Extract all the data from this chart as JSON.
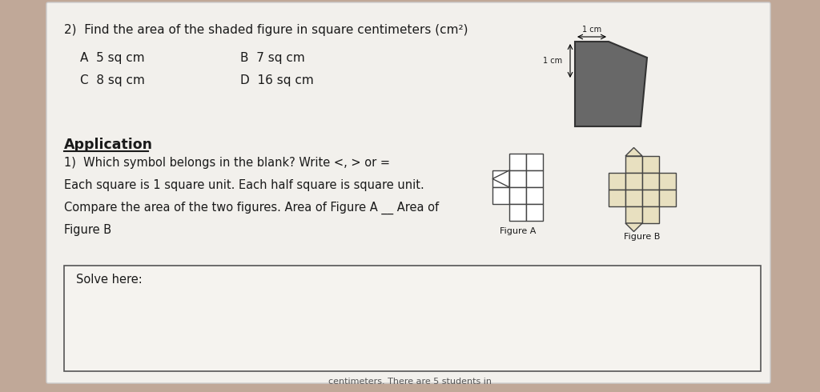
{
  "bg_color": "#c0a898",
  "page_color": "#f2f0ec",
  "title": "2)  Find the area of the shaded figure in square centimeters (cm²)",
  "choices": [
    [
      "A  5 sq cm",
      "B  7 sq cm"
    ],
    [
      "C  8 sq cm",
      "D  16 sq cm"
    ]
  ],
  "application_title": "Application",
  "app_line1": "1)  Which symbol belongs in the blank? Write <, > or =",
  "app_line2": "Each square is 1 square unit. Each half square is square unit.",
  "app_line3": "Compare the area of the two figures. Area of Figure A __ Area of",
  "app_line4": "Figure B",
  "solve_label": "Solve here:",
  "fig_a_label": "Figure A",
  "fig_b_label": "Figure B",
  "bottom_text": "centimeters. There are 5 students in"
}
